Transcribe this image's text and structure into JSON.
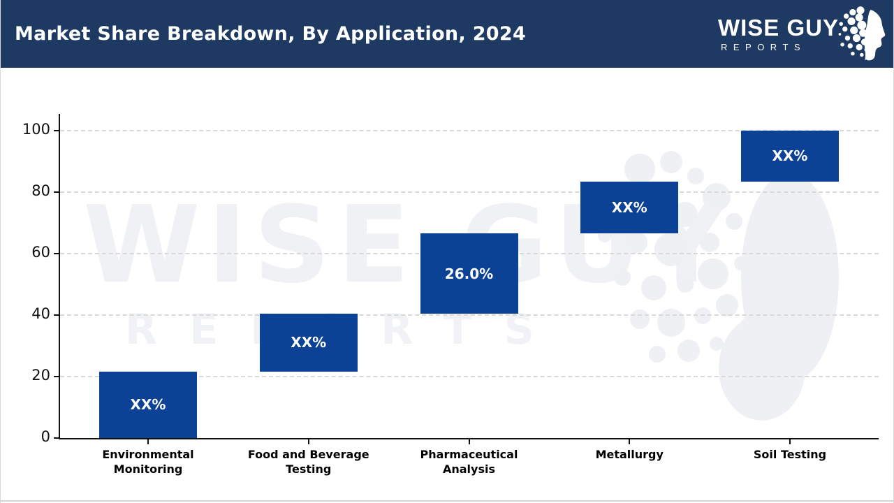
{
  "header": {
    "title": "Market Share Breakdown, By Application, 2024"
  },
  "brand": {
    "wordmark": "WISE GUY",
    "tagline": "REPORTS"
  },
  "watermark": {
    "line1": "WISE GUY",
    "line2": "REPORTS"
  },
  "colors": {
    "header_bg": "#1e3a63",
    "bar_fill": "#0b4295",
    "grid_line": "#d8d8d8",
    "axis_line": "#111111",
    "bar_label_text": "#ffffff",
    "category_text": "#000000",
    "tick_label_text": "#111111",
    "watermark_text": "#eff1f4"
  },
  "chart_data": {
    "type": "bar",
    "subtype": "waterfall",
    "title": "Market Share Breakdown, By Application, 2024",
    "categories": [
      "Environmental Monitoring",
      "Food and Beverage Testing",
      "Pharmaceutical Analysis",
      "Metallurgy",
      "Soil Testing"
    ],
    "segments": [
      {
        "category": "Environmental Monitoring",
        "start": 0,
        "end": 21.6,
        "value": 21.6,
        "label": "XX%"
      },
      {
        "category": "Food and Beverage Testing",
        "start": 21.6,
        "end": 40.5,
        "value": 18.9,
        "label": "XX%"
      },
      {
        "category": "Pharmaceutical Analysis",
        "start": 40.5,
        "end": 66.5,
        "value": 26.0,
        "label": "26.0%"
      },
      {
        "category": "Metallurgy",
        "start": 66.5,
        "end": 83.5,
        "value": 17.0,
        "label": "XX%"
      },
      {
        "category": "Soil Testing",
        "start": 83.5,
        "end": 100,
        "value": 16.5,
        "label": "XX%"
      }
    ],
    "yticks": [
      0,
      20,
      40,
      60,
      80,
      100
    ],
    "ylim": [
      0,
      100
    ],
    "xlabel": "",
    "ylabel": "",
    "grid": "horizontal-dashed",
    "legend": "none",
    "watermark": "WISE GUY REPORTS"
  }
}
